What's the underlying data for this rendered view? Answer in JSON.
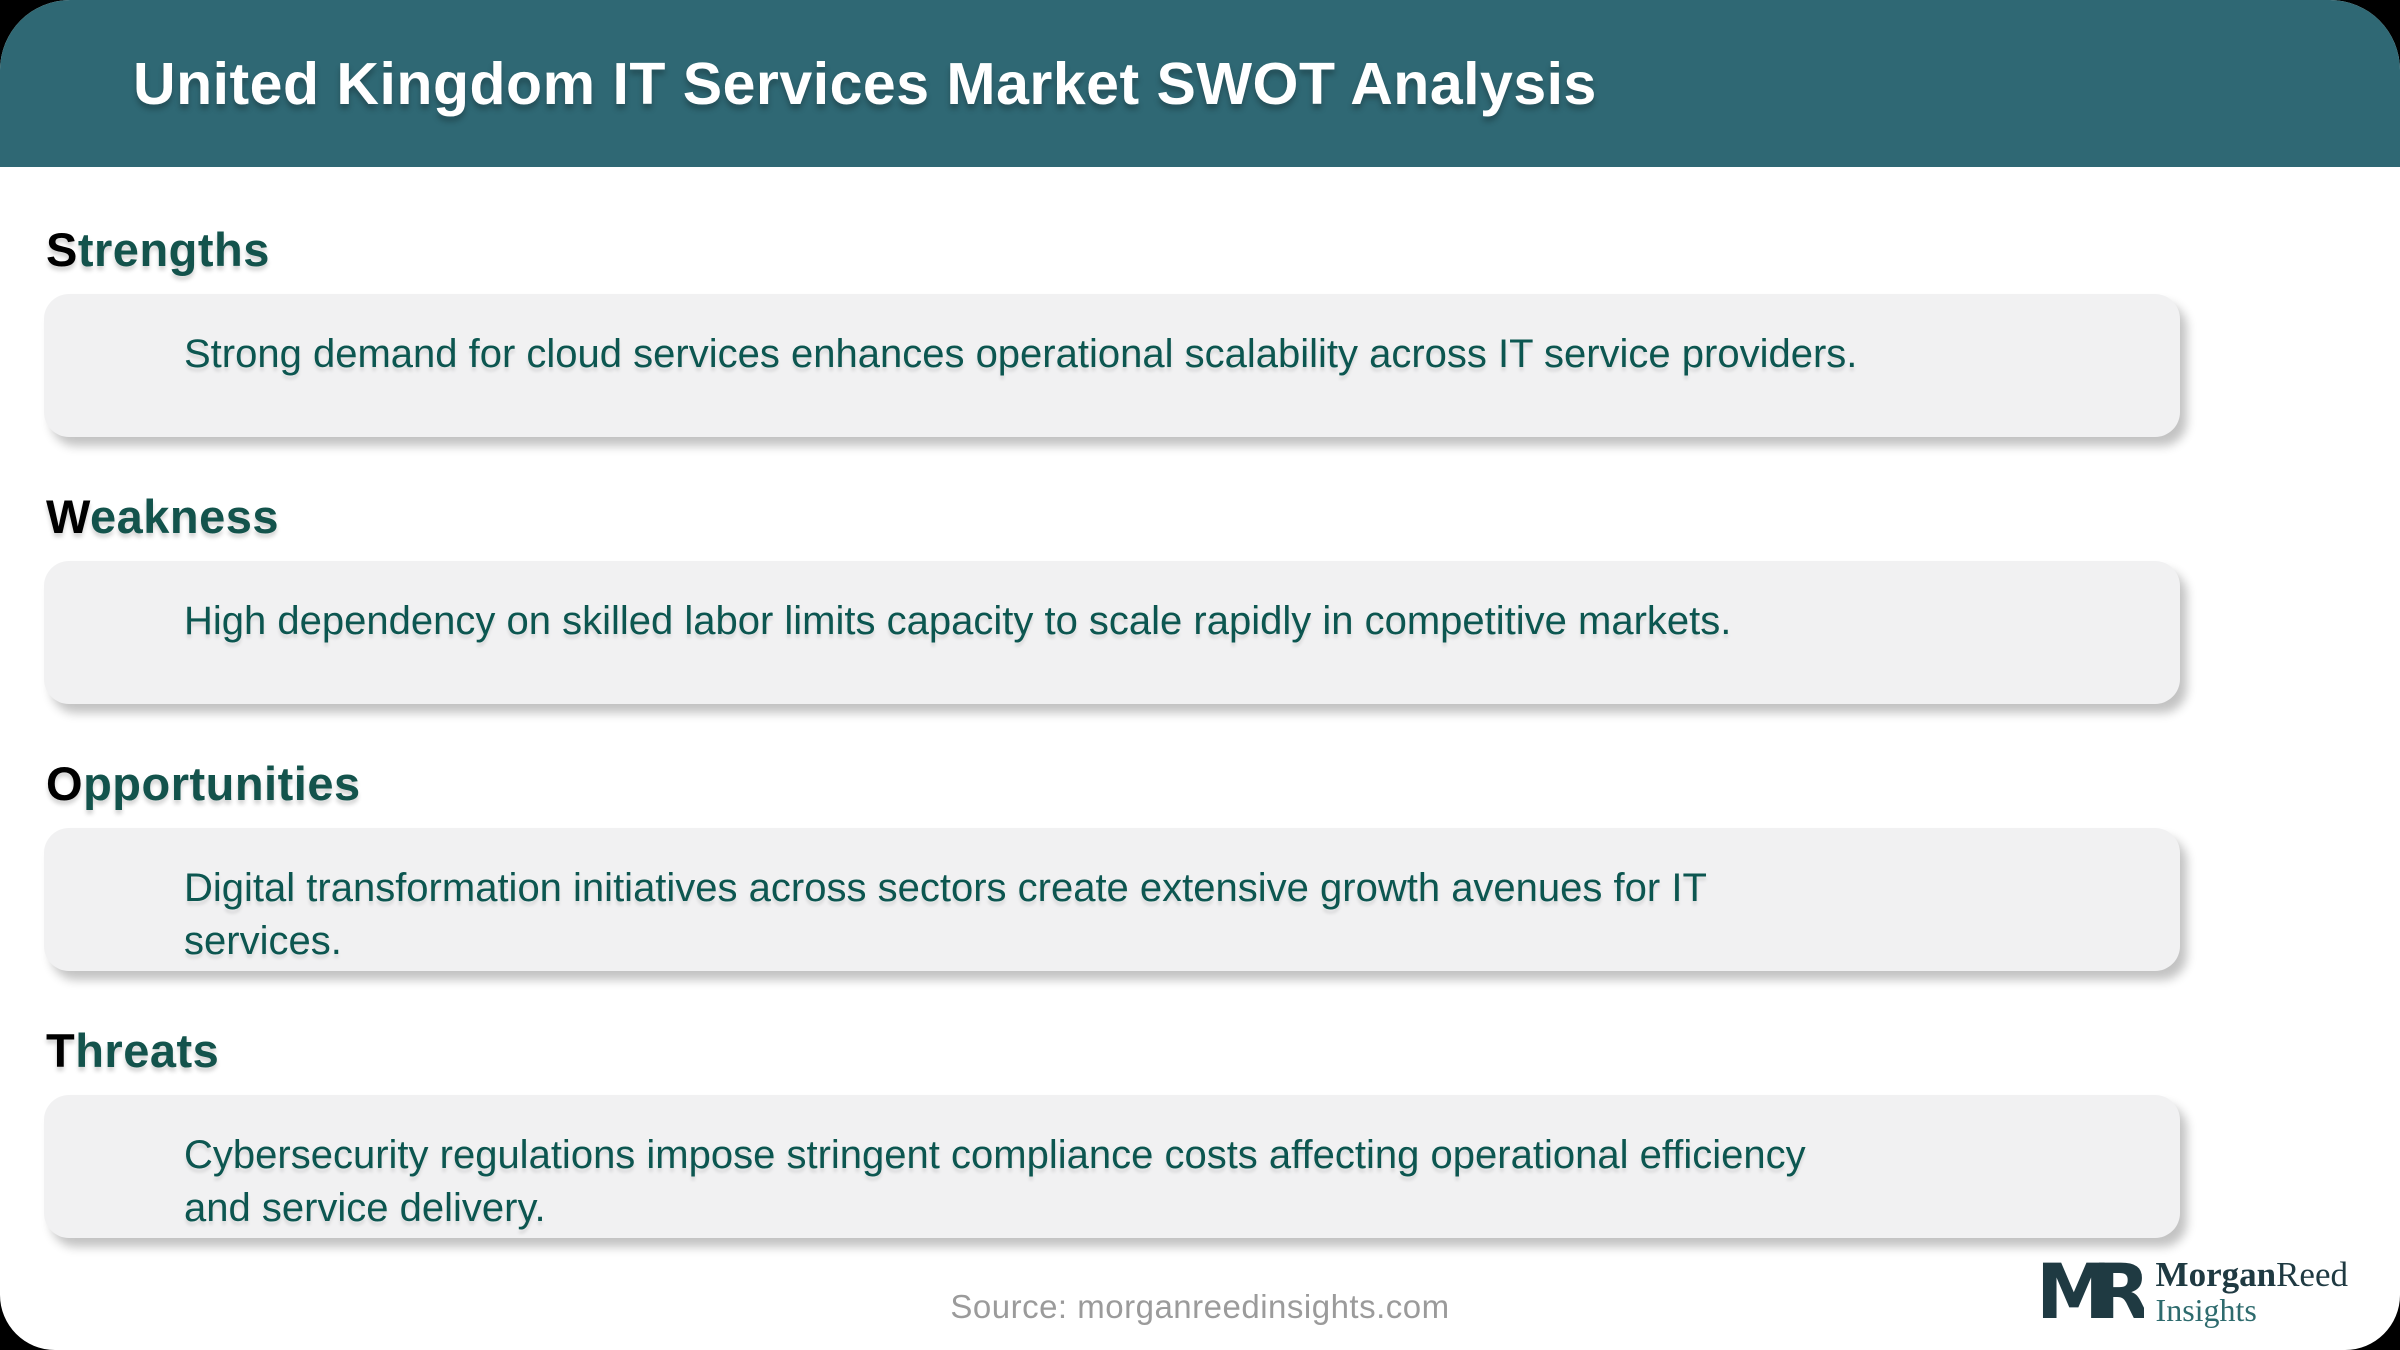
{
  "header": {
    "title": "United Kingdom IT Services Market SWOT Analysis"
  },
  "sections": [
    {
      "label": "Strengths",
      "label_first": "S",
      "label_rest": "trengths",
      "body": "Strong demand for cloud services enhances operational scalability across IT service providers."
    },
    {
      "label": "Weakness",
      "label_first": "W",
      "label_rest": "eakness",
      "body": "High dependency on skilled labor limits capacity to scale rapidly in competitive markets."
    },
    {
      "label": "Opportunities",
      "label_first": "O",
      "label_rest": "pportunities",
      "body": "Digital transformation initiatives across sectors create extensive growth avenues for IT\nservices."
    },
    {
      "label": "Threats",
      "label_first": "T",
      "label_rest": "hreats",
      "body": "Cybersecurity regulations impose stringent compliance costs affecting operational efficiency\nand service delivery."
    }
  ],
  "footer": {
    "source": "Source: morganreedinsights.com",
    "logo": {
      "monogram": "MR",
      "name_bold": "Morgan",
      "name_light": "Reed",
      "tagline": "Insights"
    }
  },
  "colors": {
    "header_bg": "#2F6874",
    "heading_text": "#13534C",
    "heading_first_letter": "#000000",
    "box_bg": "#F1F1F2",
    "box_text": "#0C5650",
    "source_text": "#9B9B9B",
    "logo_dark": "#1F3A42",
    "logo_teal": "#2E6B6E",
    "page_bg": "#000000"
  }
}
